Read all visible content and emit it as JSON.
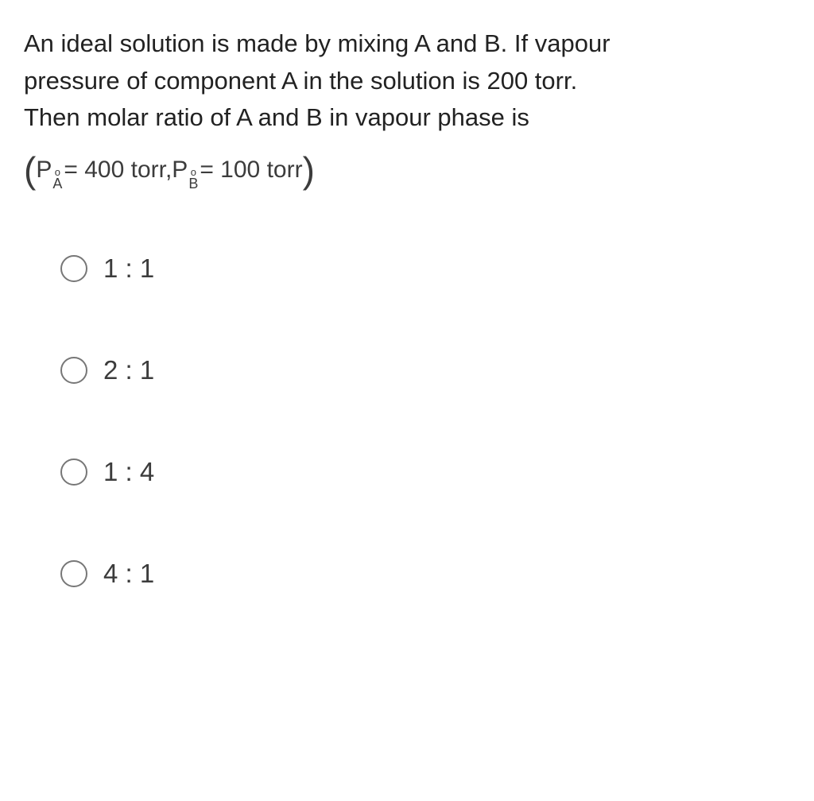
{
  "question": {
    "line1": "An ideal solution is made by mixing A and B. If vapour",
    "line2": "pressure of component A in the solution is 200 torr.",
    "line3": "Then molar ratio of A and B in vapour phase is"
  },
  "formula": {
    "open_paren": "(",
    "close_paren": ")",
    "pA_var": "P",
    "pA_sup": "o",
    "pA_sub": "A",
    "eq1": " = 400 torr, ",
    "pB_var": "P",
    "pB_sup": "o",
    "pB_sub": "B",
    "eq2": " = 100 torr"
  },
  "options": [
    {
      "label": "1 : 1"
    },
    {
      "label": "2 : 1"
    },
    {
      "label": "1 : 4"
    },
    {
      "label": "4 : 1"
    }
  ],
  "colors": {
    "text": "#222222",
    "formula_text": "#3c3c3c",
    "radio_border": "#777777",
    "background": "#ffffff"
  }
}
